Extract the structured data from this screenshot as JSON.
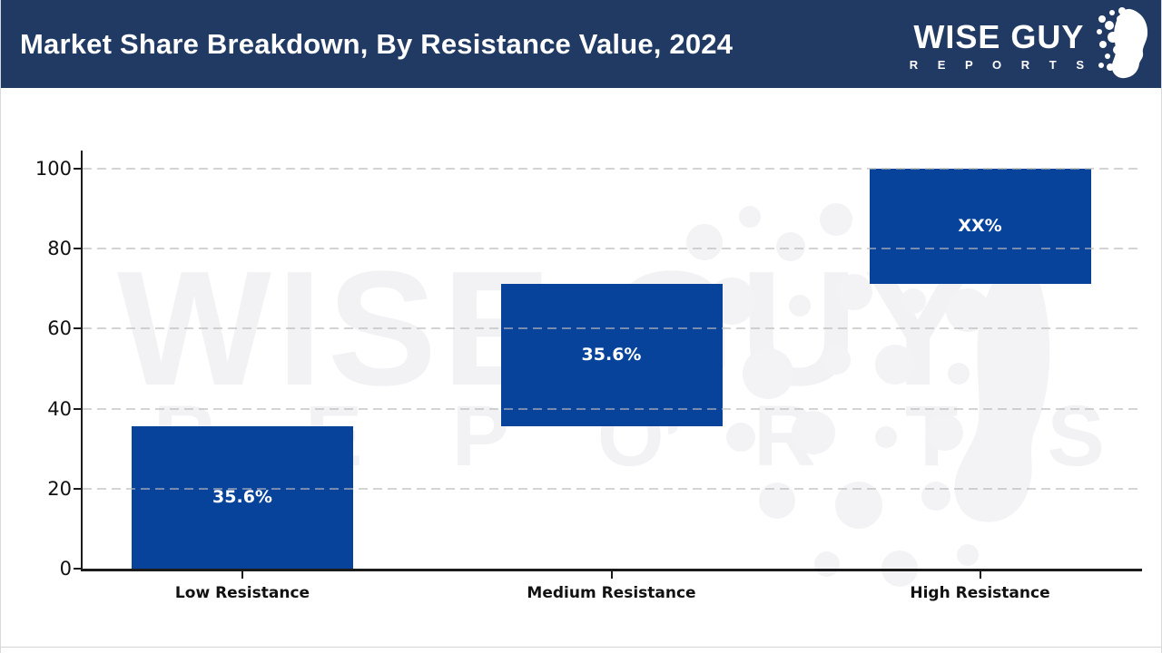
{
  "header": {
    "title": "Market Share Breakdown, By Resistance Value, 2024",
    "logo": {
      "line1": "WISE GUY",
      "line2": "R E P O R T S"
    }
  },
  "watermark": {
    "line1": "WISE GUY",
    "line2": "R E P O R T S"
  },
  "chart_data": {
    "type": "bar",
    "subtype": "floating-waterfall-segments",
    "title": "Market Share Breakdown, By Resistance Value, 2024",
    "categories": [
      "Low Resistance",
      "Medium Resistance",
      "High Resistance"
    ],
    "segments": [
      {
        "category": "Low Resistance",
        "start": 0,
        "end": 35.6,
        "label": "35.6%"
      },
      {
        "category": "Medium Resistance",
        "start": 35.6,
        "end": 71.2,
        "label": "35.6%"
      },
      {
        "category": "High Resistance",
        "start": 71.2,
        "end": 100,
        "label": "XX%"
      }
    ],
    "xlabel": "",
    "ylabel": "",
    "yticks": [
      0,
      20,
      40,
      60,
      80,
      100
    ],
    "ylim": [
      0,
      104.5
    ],
    "grid": "horizontal-dashed",
    "legend": "none",
    "bar_color": "#08439B",
    "bar_label_color": "#ffffff",
    "axis_color": "#1b1b1b",
    "grid_color": "#d8d8d8",
    "header_bg_color": "#213A64",
    "watermark_color": "#f2f2f5"
  }
}
